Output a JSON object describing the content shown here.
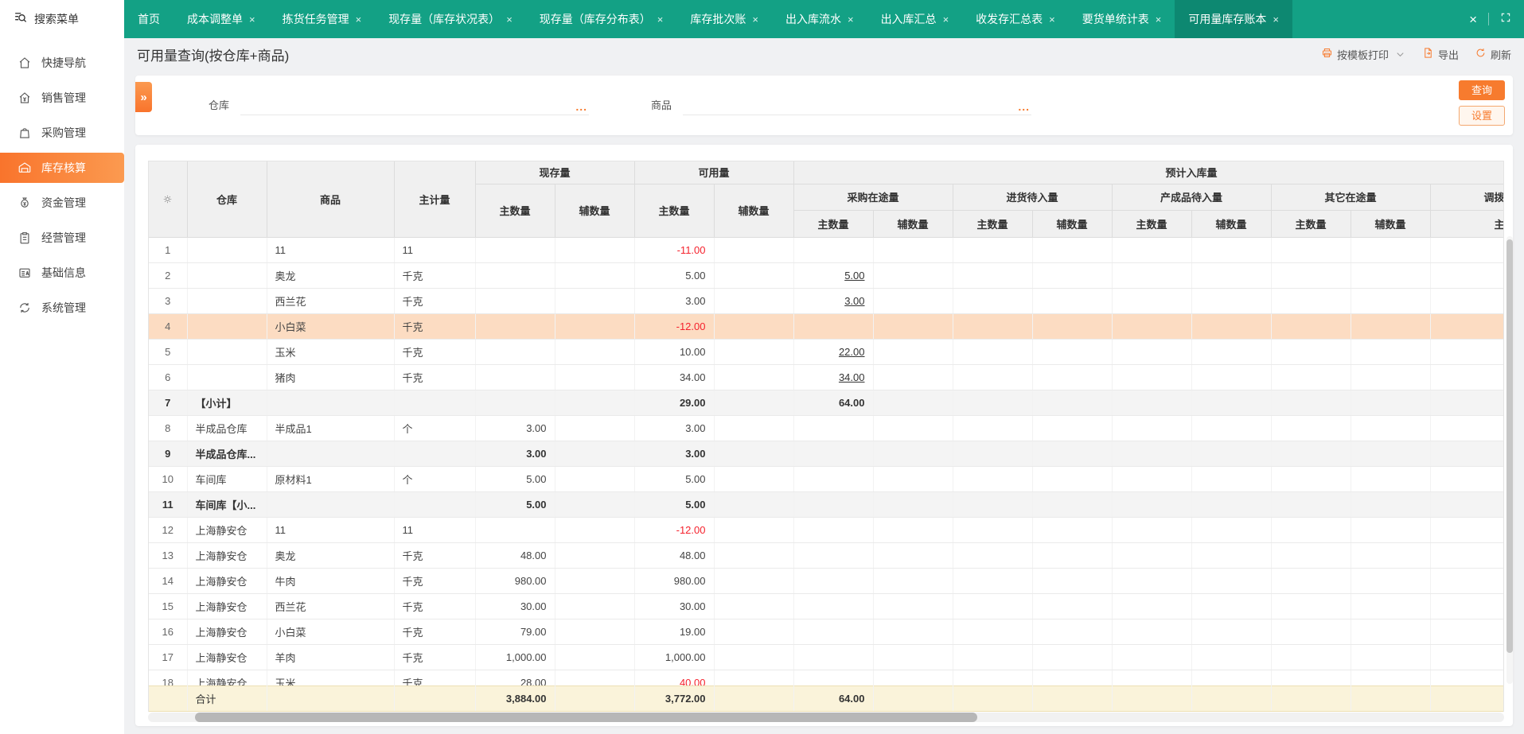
{
  "theme": {
    "accent_teal": "#13a185",
    "accent_teal_dark": "#0d8871",
    "accent_orange": "#f77b2e",
    "negative_red": "#f5222d",
    "highlight_row_bg": "#fcdcc2",
    "total_row_bg": "#faf3da"
  },
  "topbar": {
    "search_label": "搜索菜单",
    "search_icon": "menu-search-icon",
    "tabs": [
      {
        "label": "首页",
        "closable": false,
        "active": false
      },
      {
        "label": "成本调整单",
        "closable": true,
        "active": false
      },
      {
        "label": "拣货任务管理",
        "closable": true,
        "active": false
      },
      {
        "label": "现存量（库存状况表）",
        "closable": true,
        "active": false
      },
      {
        "label": "现存量（库存分布表）",
        "closable": true,
        "active": false
      },
      {
        "label": "库存批次账",
        "closable": true,
        "active": false
      },
      {
        "label": "出入库流水",
        "closable": true,
        "active": false
      },
      {
        "label": "出入库汇总",
        "closable": true,
        "active": false
      },
      {
        "label": "收发存汇总表",
        "closable": true,
        "active": false
      },
      {
        "label": "要货单统计表",
        "closable": true,
        "active": false
      },
      {
        "label": "可用量库存账本",
        "closable": true,
        "active": true
      }
    ],
    "close_glyph": "×",
    "window_icons": [
      "close-icon",
      "fullscreen-icon"
    ]
  },
  "sidebar": {
    "items": [
      {
        "label": "快捷导航",
        "icon": "home-icon",
        "active": false
      },
      {
        "label": "销售管理",
        "icon": "sales-icon",
        "active": false
      },
      {
        "label": "采购管理",
        "icon": "purchase-bag-icon",
        "active": false
      },
      {
        "label": "库存核算",
        "icon": "warehouse-icon",
        "active": true
      },
      {
        "label": "资金管理",
        "icon": "money-bag-icon",
        "active": false
      },
      {
        "label": "经营管理",
        "icon": "clipboard-icon",
        "active": false
      },
      {
        "label": "基础信息",
        "icon": "info-card-icon",
        "active": false
      },
      {
        "label": "系统管理",
        "icon": "system-sync-icon",
        "active": false
      }
    ]
  },
  "page": {
    "title": "可用量查询(按仓库+商品)",
    "actions": {
      "print": "按模板打印",
      "export": "导出",
      "refresh": "刷新",
      "icons": [
        "printer-icon",
        "chevron-down-icon",
        "export-icon",
        "refresh-icon"
      ]
    }
  },
  "filter": {
    "collapse_glyph": "»",
    "fields": [
      {
        "label": "仓库",
        "value": "",
        "suffix": "..."
      },
      {
        "label": "商品",
        "value": "",
        "suffix": "..."
      }
    ],
    "buttons": {
      "query": "查询",
      "settings": "设置"
    }
  },
  "table": {
    "header": {
      "gear_icon": "gear-icon",
      "cols": [
        "仓库",
        "商品",
        "主计量"
      ],
      "groups": [
        "现存量",
        "可用量",
        "预计入库量"
      ],
      "main": "主数量",
      "aux": "辅数量",
      "subgroups": [
        "采购在途量",
        "进货待入量",
        "产成品待入量",
        "其它在途量",
        "调拨在途量"
      ]
    },
    "rows": [
      {
        "cells": {
          "num": "1",
          "warehouse": "",
          "product": "11",
          "unit": "11",
          "avail_main": "-11.00"
        },
        "red": [
          "avail_main"
        ]
      },
      {
        "cells": {
          "num": "2",
          "product": "奥龙",
          "unit": "千克",
          "avail_main": "5.00",
          "po_main": "5.00"
        },
        "links": [
          "po_main"
        ]
      },
      {
        "cells": {
          "num": "3",
          "product": "西兰花",
          "unit": "千克",
          "avail_main": "3.00",
          "po_main": "3.00"
        },
        "links": [
          "po_main"
        ]
      },
      {
        "cells": {
          "num": "4",
          "product": "小白菜",
          "unit": "千克",
          "avail_main": "-12.00"
        },
        "red": [
          "avail_main"
        ],
        "type": "highlight"
      },
      {
        "cells": {
          "num": "5",
          "product": "玉米",
          "unit": "千克",
          "avail_main": "10.00",
          "po_main": "22.00"
        },
        "links": [
          "po_main"
        ]
      },
      {
        "cells": {
          "num": "6",
          "product": "猪肉",
          "unit": "千克",
          "avail_main": "34.00",
          "po_main": "34.00"
        },
        "links": [
          "po_main"
        ]
      },
      {
        "cells": {
          "num": "7",
          "warehouse": "【小计】",
          "avail_main": "29.00",
          "po_main": "64.00"
        },
        "type": "subtotal"
      },
      {
        "cells": {
          "num": "8",
          "warehouse": "半成品仓库",
          "product": "半成品1",
          "unit": "个",
          "stock_main": "3.00",
          "avail_main": "3.00"
        }
      },
      {
        "cells": {
          "num": "9",
          "warehouse": "半成品仓库...",
          "stock_main": "3.00",
          "avail_main": "3.00"
        },
        "type": "subtotal"
      },
      {
        "cells": {
          "num": "10",
          "warehouse": "车间库",
          "product": "原材料1",
          "unit": "个",
          "stock_main": "5.00",
          "avail_main": "5.00"
        }
      },
      {
        "cells": {
          "num": "11",
          "warehouse": "车间库【小...",
          "stock_main": "5.00",
          "avail_main": "5.00"
        },
        "type": "subtotal"
      },
      {
        "cells": {
          "num": "12",
          "warehouse": "上海静安仓",
          "product": "11",
          "unit": "11",
          "avail_main": "-12.00"
        },
        "red": [
          "avail_main"
        ]
      },
      {
        "cells": {
          "num": "13",
          "warehouse": "上海静安仓",
          "product": "奥龙",
          "unit": "千克",
          "stock_main": "48.00",
          "avail_main": "48.00"
        }
      },
      {
        "cells": {
          "num": "14",
          "warehouse": "上海静安仓",
          "product": "牛肉",
          "unit": "千克",
          "stock_main": "980.00",
          "avail_main": "980.00"
        }
      },
      {
        "cells": {
          "num": "15",
          "warehouse": "上海静安仓",
          "product": "西兰花",
          "unit": "千克",
          "stock_main": "30.00",
          "avail_main": "30.00"
        }
      },
      {
        "cells": {
          "num": "16",
          "warehouse": "上海静安仓",
          "product": "小白菜",
          "unit": "千克",
          "stock_main": "79.00",
          "avail_main": "19.00"
        }
      },
      {
        "cells": {
          "num": "17",
          "warehouse": "上海静安仓",
          "product": "羊肉",
          "unit": "千克",
          "stock_main": "1,000.00",
          "avail_main": "1,000.00"
        }
      },
      {
        "cells": {
          "num": "18",
          "warehouse": "上海静安仓",
          "product": "玉米",
          "unit": "千克",
          "stock_main": "28.00",
          "avail_main": "40.00"
        },
        "red": [
          "avail_main"
        ]
      }
    ],
    "footer": {
      "cells": {
        "warehouse": "合计",
        "stock_main": "3,884.00",
        "avail_main": "3,772.00",
        "po_main": "64.00"
      }
    }
  }
}
